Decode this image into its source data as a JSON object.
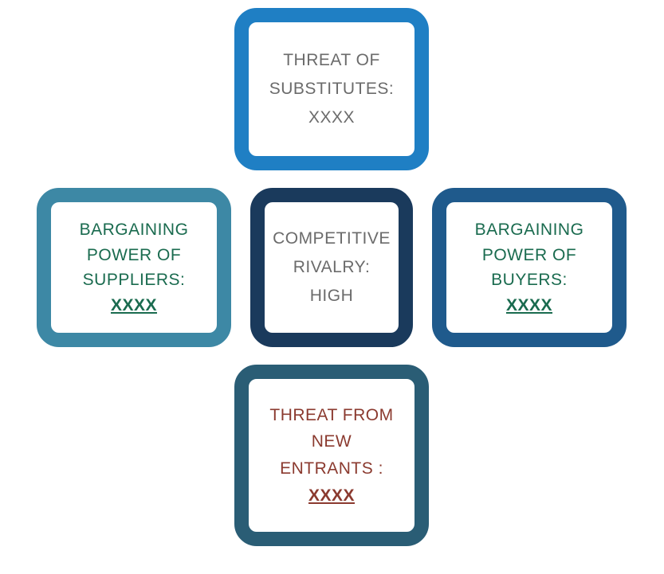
{
  "diagram": {
    "type": "infographic",
    "layout": "cross",
    "background_color": "#ffffff",
    "box_border_radius": 28,
    "box_border_width": 18,
    "font_family": "Arial, sans-serif",
    "label_fontsize": 21
  },
  "forces": {
    "top": {
      "line1": "THREAT OF",
      "line2": "SUBSTITUTES:",
      "value": "XXXX",
      "border_color": "#1f7fc4",
      "text_color": "#6b6b6b",
      "value_color": "#6b6b6b"
    },
    "left": {
      "line1": "BARGAINING",
      "line2": "POWER OF",
      "line3": "SUPPLIERS:",
      "value": "XXXX",
      "border_color": "#3d88a5",
      "text_color": "#1a6b4f",
      "value_color": "#1a6b4f"
    },
    "center": {
      "line1": "COMPETITIVE",
      "line2": "RIVALRY:",
      "value": "HIGH",
      "border_color": "#1a3a5c",
      "text_color": "#6b6b6b",
      "value_color": "#6b6b6b"
    },
    "right": {
      "line1": "BARGAINING",
      "line2": "POWER  OF",
      "line3": "BUYERS:",
      "value": "XXXX",
      "border_color": "#1f5a8c",
      "text_color": "#1a6b4f",
      "value_color": "#1a6b4f"
    },
    "bottom": {
      "line1": "THREAT FROM",
      "line2": "NEW",
      "line3": "ENTRANTS :",
      "value": "XXXX",
      "border_color": "#2a5d75",
      "text_color": "#8b3a2f",
      "value_color": "#8b3a2f"
    }
  }
}
